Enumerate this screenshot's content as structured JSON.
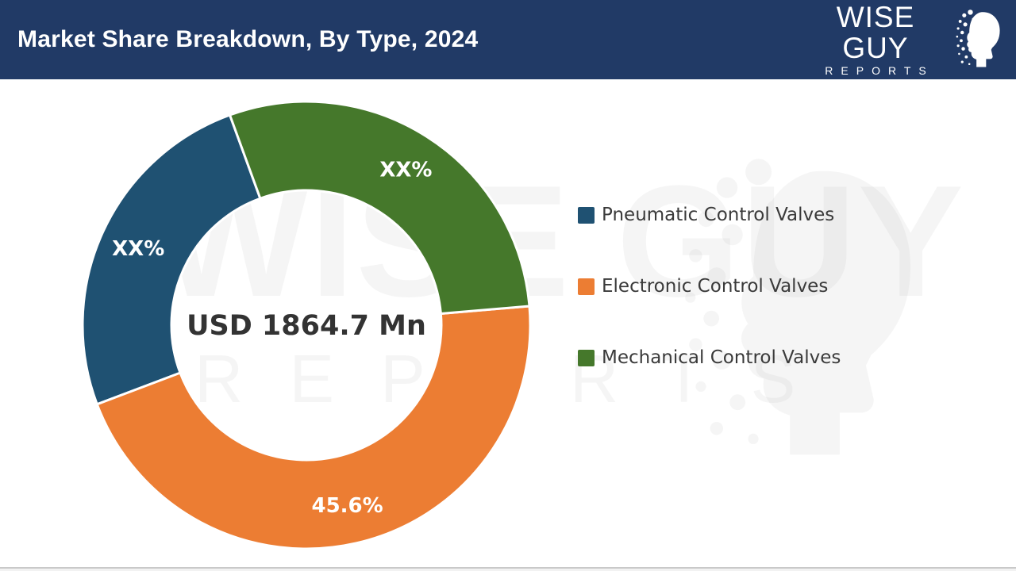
{
  "header": {
    "title": "Market Share Breakdown, By Type, 2024",
    "bg_color": "#213A66",
    "logo": {
      "line1": "WISE GUY",
      "line2": "REPORTS"
    }
  },
  "chart_data": {
    "type": "pie",
    "donut": true,
    "title": "Market Share Breakdown, By Type, 2024",
    "center_label": "USD 1864.7 Mn",
    "start_angle_deg": 110,
    "direction": "counterclockwise",
    "legend_position": "right",
    "segments": [
      {
        "label": "Pneumatic Control Valves",
        "display_value": "XX%",
        "value_pct": 25.2,
        "color": "#1F5172"
      },
      {
        "label": "Electronic Control Valves",
        "display_value": "45.6%",
        "value_pct": 45.6,
        "color": "#EC7D33"
      },
      {
        "label": "Mechanical Control Valves",
        "display_value": "XX%",
        "value_pct": 29.2,
        "color": "#45782B"
      }
    ]
  },
  "watermark": {
    "line1": "WISE GUY",
    "line2": "REPORTS"
  },
  "colors": {
    "header_bg": "#213A66",
    "center_text": "#333333",
    "legend_text": "#3A3A3A",
    "slice_label": "#FFFFFF",
    "footer_line": "#C9C9C9"
  }
}
